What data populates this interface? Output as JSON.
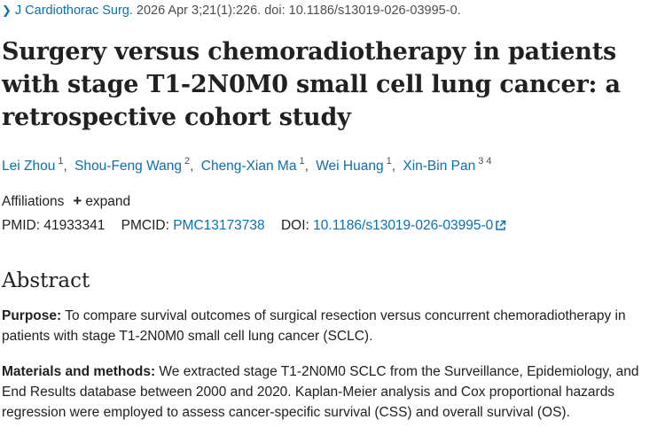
{
  "citation": {
    "journal": "J Cardiothorac Surg.",
    "details": "2026 Apr 3;21(1):226. doi: 10.1186/s13019-026-03995-0."
  },
  "title": "Surgery versus chemoradiotherapy in patients with stage T1-2N0M0 small cell lung cancer: a retrospective cohort study",
  "authors": [
    {
      "name": "Lei Zhou",
      "aff": "1"
    },
    {
      "name": "Shou-Feng Wang",
      "aff": "2"
    },
    {
      "name": "Cheng-Xian Ma",
      "aff": "1"
    },
    {
      "name": "Wei Huang",
      "aff": "1"
    },
    {
      "name": "Xin-Bin Pan",
      "aff": "3 4"
    }
  ],
  "affiliations": {
    "label": "Affiliations",
    "toggle": "expand"
  },
  "identifiers": {
    "pmid_label": "PMID:",
    "pmid": "41933341",
    "pmcid_label": "PMCID:",
    "pmcid": "PMC13173738",
    "doi_label": "DOI:",
    "doi": "10.1186/s13019-026-03995-0"
  },
  "abstract": {
    "heading": "Abstract",
    "purpose_label": "Purpose:",
    "purpose_text": " To compare survival outcomes of surgical resection versus concurrent chemoradiotherapy in patients with stage T1-2N0M0 small cell lung cancer (SCLC).",
    "methods_label": "Materials and methods:",
    "methods_text": " We extracted stage T1-2N0M0 SCLC from the Surveillance, Epidemiology, and End Results database between 2000 and 2020. Kaplan-Meier analysis and Cox proportional hazards regression were employed to assess cancer-specific survival (CSS) and overall survival (OS)."
  },
  "colors": {
    "link": "#0b6fb3",
    "text": "#212121"
  }
}
